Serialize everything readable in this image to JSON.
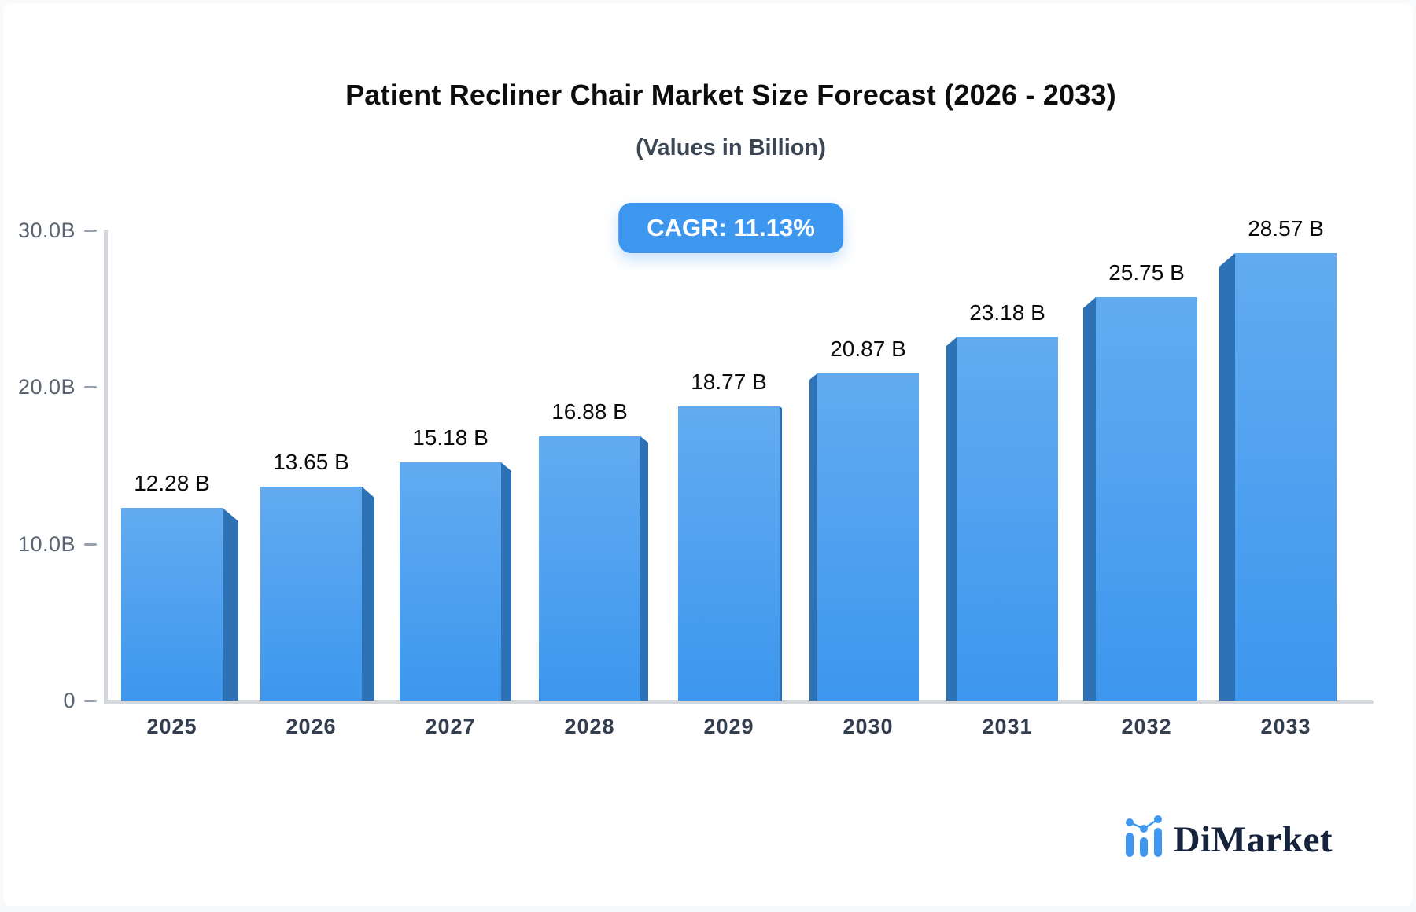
{
  "title": "Patient Recliner Chair Market Size Forecast (2026 - 2033)",
  "subtitle": "(Values in Billion)",
  "badge": {
    "label": "CAGR: 11.13%"
  },
  "chart_data": {
    "type": "bar",
    "title": "Patient Recliner Chair Market Size Forecast (2026 - 2033)",
    "subtitle": "(Values in Billion)",
    "unit": "Billion",
    "categories": [
      "2025",
      "2026",
      "2027",
      "2028",
      "2029",
      "2030",
      "2031",
      "2032",
      "2033"
    ],
    "values": [
      12.28,
      13.65,
      15.18,
      16.88,
      18.77,
      20.87,
      23.18,
      25.75,
      28.57
    ],
    "value_labels": [
      "12.28 B",
      "13.65 B",
      "15.18 B",
      "16.88 B",
      "18.77 B",
      "20.87 B",
      "23.18 B",
      "25.75 B",
      "28.57 B"
    ],
    "cagr": "11.13%",
    "ylim": [
      0,
      30
    ],
    "y_ticks": [
      {
        "value": 30,
        "label": "30.0B"
      },
      {
        "value": 20,
        "label": "20.0B"
      },
      {
        "value": 10,
        "label": "10.0B"
      },
      {
        "value": 0,
        "label": "0"
      }
    ],
    "grid": false,
    "legend": false,
    "style_3d": true
  },
  "colors": {
    "badge_bg": "#3e97ef",
    "bar_face_top": "#62abf1",
    "bar_face_bottom": "#3d97ee",
    "bar_side": "#2d72b5",
    "axis": "#d4d8dd",
    "tick": "#98a1ad",
    "tick_label": "#5a6472",
    "x_label": "#333f4f",
    "value_label": "#0a0a0b",
    "logo_blue": "#3f97f0",
    "logo_text": "#16233c"
  },
  "logo": {
    "text": "DiMarket",
    "icon": "mini-bar-chart-icon"
  }
}
